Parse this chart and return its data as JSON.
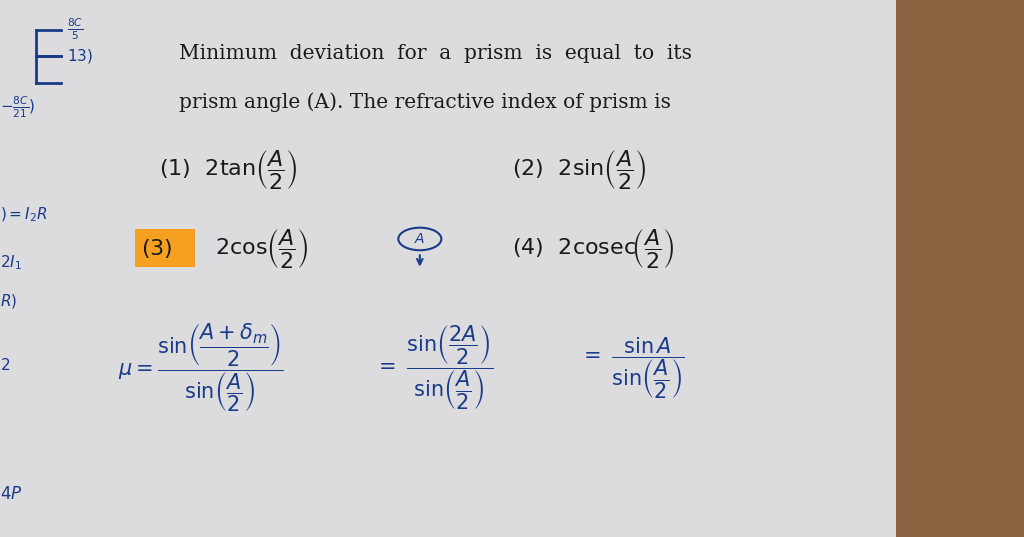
{
  "bg_color": "#c8c8c8",
  "paper_color": "#e8e8ea",
  "wood_color": "#8B6340",
  "text_black": "#1a1a1a",
  "blue_ink": "#1a3a8a",
  "orange_highlight": "#f5a020",
  "title_fontsize": 14.5,
  "option_fontsize": 16,
  "formula_fontsize": 15,
  "side_fontsize": 11
}
